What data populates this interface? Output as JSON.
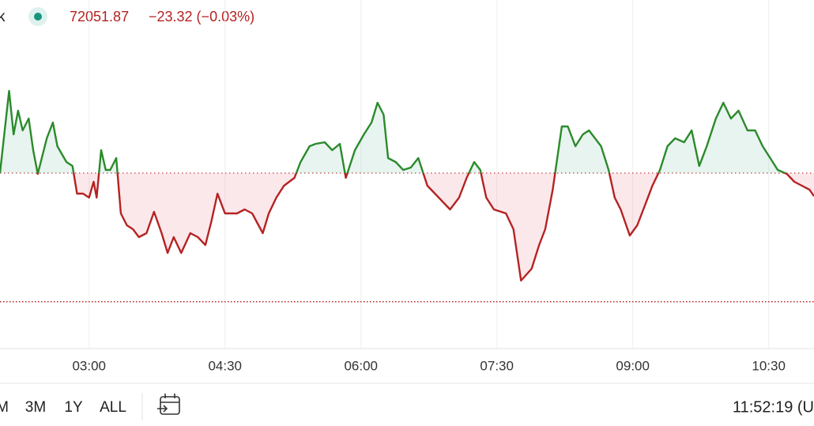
{
  "chart_data": {
    "type": "line",
    "title": "k",
    "price": "72051.87",
    "change": "−23.32 (−0.03%)",
    "x": [
      121,
      125,
      127,
      130,
      133,
      136,
      140,
      143,
      146,
      150,
      152,
      156,
      159,
      162,
      165,
      169,
      172,
      176,
      180,
      183,
      185,
      188,
      191,
      194,
      198,
      201,
      205,
      209,
      213,
      218,
      223,
      228,
      232,
      236,
      241,
      247,
      252,
      257,
      261,
      265,
      270,
      278,
      283,
      288,
      295,
      299,
      304,
      309,
      316,
      320,
      326,
      330,
      336,
      341,
      346,
      350,
      356,
      362,
      367,
      371,
      375,
      378,
      383,
      388,
      393,
      398,
      404,
      409,
      414,
      419,
      425,
      430,
      435,
      439,
      443,
      448,
      456,
      461,
      466,
      473,
      478,
      482,
      487,
      493,
      497,
      502,
      507,
      511,
      515,
      519,
      524,
      528,
      532,
      538,
      543,
      548,
      553,
      558,
      563,
      568,
      574,
      579,
      584,
      589,
      595,
      600,
      605,
      610,
      616,
      621,
      626,
      631,
      636,
      642,
      647,
      652,
      657,
      660
    ],
    "values": [
      72075.2,
      72130.4,
      72158.4,
      72114.4,
      72138.4,
      72118.4,
      72130.4,
      72098.4,
      72074.4,
      72098.4,
      72110.4,
      72126.4,
      72102.4,
      72094.4,
      72086.4,
      72082.4,
      72054.4,
      72054.4,
      72050.4,
      72066.4,
      72050.4,
      72098.4,
      72078.4,
      72078.4,
      72090.4,
      72034.4,
      72022.4,
      72018.4,
      72010.4,
      72014.4,
      72036.0,
      72014.4,
      71994.4,
      72010.4,
      71994.4,
      72014.4,
      72010.4,
      72002.4,
      72026.4,
      72054.4,
      72034.4,
      72034.4,
      72038.4,
      72034.4,
      72014.4,
      72034.4,
      72050.4,
      72062.4,
      72070.4,
      72086.4,
      72102.4,
      72104.8,
      72106.4,
      72098.4,
      72104.8,
      72070.4,
      72098.4,
      72114.4,
      72126.4,
      72146.4,
      72134.4,
      72090.4,
      72086.4,
      72078.4,
      72080.8,
      72090.4,
      72062.4,
      72054.4,
      72046.4,
      72038.4,
      72050.4,
      72070.4,
      72086.4,
      72078.4,
      72050.4,
      72038.4,
      72034.4,
      72018.4,
      71966.4,
      71978.4,
      72002.4,
      72018.4,
      72058.4,
      72122.4,
      72122.4,
      72102.4,
      72114.4,
      72118.4,
      72110.4,
      72102.4,
      72078.4,
      72050.4,
      72038.4,
      72012.0,
      72022.4,
      72042.4,
      72062.4,
      72078.4,
      72102.4,
      72110.4,
      72106.4,
      72118.4,
      72082.4,
      72102.4,
      72130.4,
      72146.4,
      72130.4,
      72138.4,
      72118.4,
      72118.4,
      72102.4,
      72090.4,
      72078.4,
      72074.4,
      72066.4,
      72062.4,
      72058.4,
      72051.87
    ],
    "baseline": 72075.19,
    "reference_line": 71945,
    "xlim": [
      121,
      660
    ],
    "ylim": [
      71898.4,
      72218.4
    ],
    "xticks": [
      {
        "value": 180,
        "label": "03:00"
      },
      {
        "value": 270,
        "label": "04:30"
      },
      {
        "value": 360,
        "label": "06:00"
      },
      {
        "value": 450,
        "label": "07:30"
      },
      {
        "value": 540,
        "label": "09:00"
      },
      {
        "value": 630,
        "label": "10:30"
      }
    ],
    "grid": true,
    "up_color": "#2b8a2b",
    "down_color": "#b52222",
    "ranges": [
      "M",
      "3M",
      "1Y",
      "ALL"
    ],
    "clock": "11:52:19 (U"
  }
}
